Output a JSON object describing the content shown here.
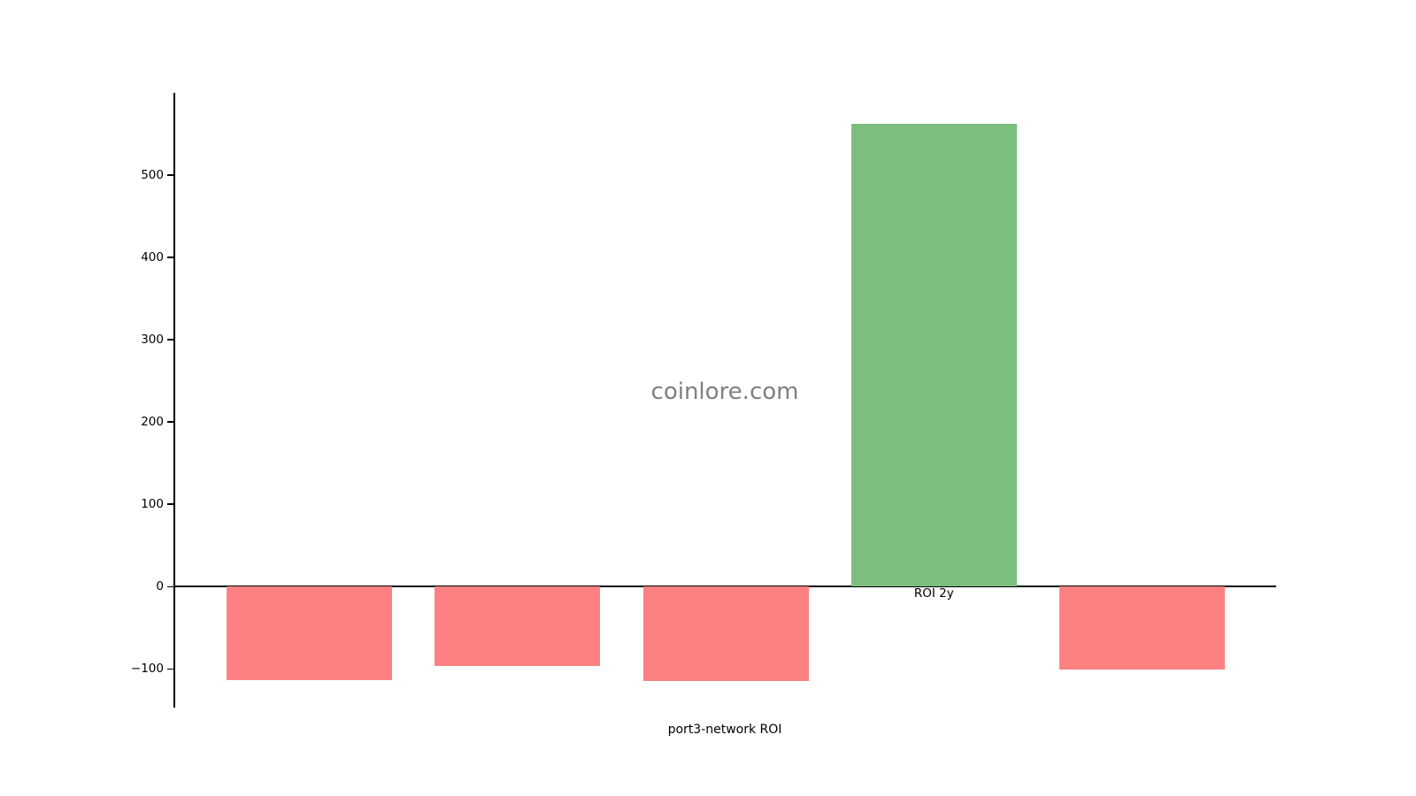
{
  "page": {
    "background": "#ffffff"
  },
  "watermark": {
    "text": "coinlore.com",
    "color": "#7f7f7f"
  },
  "chart_data": {
    "type": "bar",
    "title": "",
    "xlabel": "port3-network ROI",
    "ylabel": "",
    "categories": [
      "",
      "",
      "",
      "ROI 2y",
      ""
    ],
    "values": [
      -114,
      -96,
      -115,
      562,
      -101
    ],
    "colors": [
      "#fd8181",
      "#fd8181",
      "#fd8181",
      "#7cbf7c",
      "#fd8181"
    ],
    "positive_color": "#7cbf7c",
    "negative_color": "#fd8181",
    "y_ticks": [
      {
        "label": "500",
        "value": 500
      },
      {
        "label": "400",
        "value": 400
      },
      {
        "label": "300",
        "value": 300
      },
      {
        "label": "200",
        "value": 200
      },
      {
        "label": "100",
        "value": 100
      },
      {
        "label": "0",
        "value": 0
      },
      {
        "label": "−100",
        "value": -100
      }
    ],
    "ylim": [
      -147,
      600
    ],
    "grid": false,
    "legend": null,
    "zero_line": true,
    "axis_color": "#000000"
  }
}
